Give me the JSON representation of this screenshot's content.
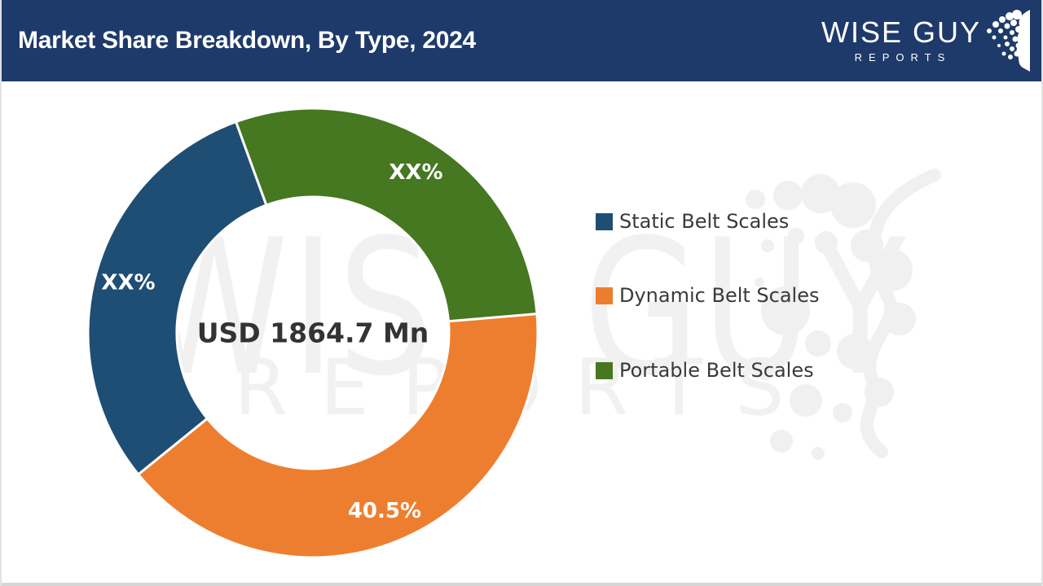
{
  "header": {
    "title": "Market Share Breakdown, By Type, 2024",
    "bg_color": "#1e3a6a",
    "brand": {
      "wordmark": "WISE GUY",
      "tagline": "REPORTS"
    }
  },
  "watermark": {
    "line1": "WISE GUY",
    "line2": "REPORTS"
  },
  "chart_data": {
    "type": "pie",
    "subtype": "donut",
    "title": "Market Share Breakdown, By Type, 2024",
    "center_label": "USD 1864.7 Mn",
    "start_angle_deg": 110,
    "direction": "counterclockwise",
    "inner_radius_ratio": 0.605,
    "legend_position": "right",
    "grid": false,
    "series": [
      {
        "name": "Static Belt Scales",
        "label": "XX%",
        "value": 30.3,
        "color": "#1f4e74"
      },
      {
        "name": "Dynamic Belt Scales",
        "label": "40.5%",
        "value": 40.5,
        "color": "#ee7e2f"
      },
      {
        "name": "Portable Belt Scales",
        "label": "XX%",
        "value": 29.2,
        "color": "#457821"
      }
    ],
    "colors": {
      "header_bg": "#1e3a6a",
      "center_text": "#333333",
      "legend_text": "#3a3a3a",
      "slice_label_text": "#ffffff",
      "watermark": "#f1f1f1"
    }
  }
}
